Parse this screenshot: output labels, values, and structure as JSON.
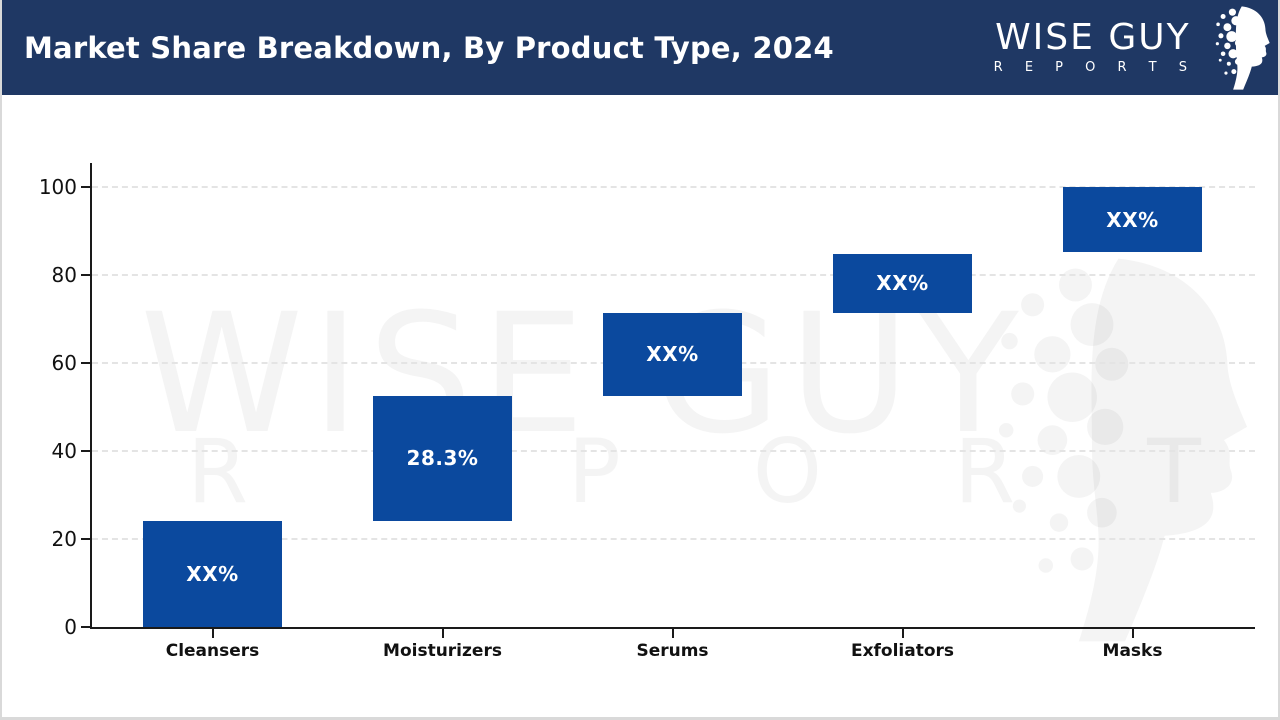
{
  "header": {
    "title": "Market Share Breakdown, By Product Type, 2024",
    "logo": {
      "name": "WISE GUY",
      "tagline": "R E P O R T S"
    }
  },
  "watermark": {
    "line1": "WISE GUY",
    "line2": "R E P O R T S"
  },
  "colors": {
    "header_bg": "#1f3864",
    "bar_fill": "#0b499e",
    "bar_label": "#ffffff",
    "grid": "#e4e4e4",
    "axis": "#1a1a1a",
    "frame_border": "#d9d9d9"
  },
  "chart_data": {
    "type": "bar",
    "subtype": "waterfall-floating-bars",
    "title": "Market Share Breakdown, By Product Type, 2024",
    "xlabel": "",
    "ylabel": "",
    "categories": [
      "Cleansers",
      "Moisturizers",
      "Serums",
      "Exfoliators",
      "Masks"
    ],
    "bars": [
      {
        "category": "Cleansers",
        "start": 0,
        "end": 24.2,
        "label": "XX%"
      },
      {
        "category": "Moisturizers",
        "start": 24.2,
        "end": 52.5,
        "label": "28.3%"
      },
      {
        "category": "Serums",
        "start": 52.5,
        "end": 71.4,
        "label": "XX%"
      },
      {
        "category": "Exfoliators",
        "start": 71.4,
        "end": 84.8,
        "label": "XX%"
      },
      {
        "category": "Masks",
        "start": 85.2,
        "end": 100,
        "label": "XX%"
      }
    ],
    "yticks": [
      0,
      20,
      40,
      60,
      80,
      100
    ],
    "ylim": [
      0,
      110
    ],
    "grid": "horizontal-dashed",
    "legend": null
  }
}
